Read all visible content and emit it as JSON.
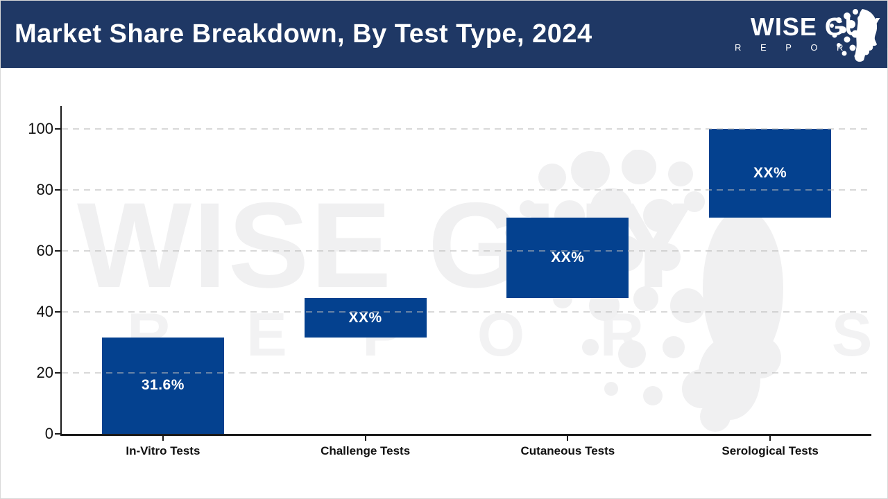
{
  "header": {
    "title": "Market Share Breakdown, By Test Type, 2024",
    "logo": {
      "word": "WISE GUY",
      "sub": "R E P O R T S"
    }
  },
  "watermark": {
    "text": "WISE GUY",
    "sub": "R E P O R T S"
  },
  "colors": {
    "header_bg": "#1f3865",
    "bar": "#04418f",
    "watermark_gray": "#f0f0f1",
    "grid_gray": "#d9d9d9",
    "axis_black": "#1a1a1a",
    "label_white": "#ffffff"
  },
  "chart_data": {
    "type": "bar",
    "subtype": "waterfall",
    "title": "Market Share Breakdown, By Test Type, 2024",
    "categories": [
      "In-Vitro Tests",
      "Challenge Tests",
      "Cutaneous Tests",
      "Serological Tests"
    ],
    "segments": [
      {
        "category": "In-Vitro Tests",
        "start": 0,
        "end": 31.6,
        "label": "31.6%"
      },
      {
        "category": "Challenge Tests",
        "start": 31.6,
        "end": 44.5,
        "label": "XX%"
      },
      {
        "category": "Cutaneous Tests",
        "start": 44.5,
        "end": 71,
        "label": "XX%"
      },
      {
        "category": "Serological Tests",
        "start": 71,
        "end": 100,
        "label": "XX%"
      }
    ],
    "xlabel": "",
    "ylabel": "",
    "ylim": [
      0,
      100
    ],
    "yticks": [
      0,
      20,
      40,
      60,
      80,
      100
    ],
    "grid": "horizontal-dashed",
    "legend": "none",
    "bar_color": "#04418f"
  }
}
